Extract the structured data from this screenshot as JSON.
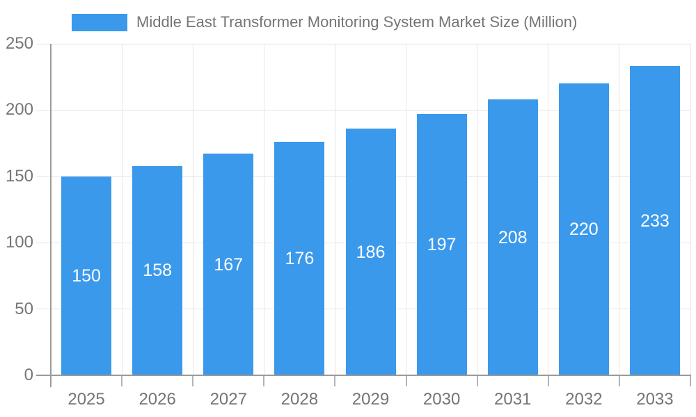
{
  "legend": {
    "label": "Middle East Transformer Monitoring System Market Size (Million)"
  },
  "chart_data": {
    "type": "bar",
    "title": "Middle East Transformer Monitoring System Market Size (Million)",
    "categories": [
      "2025",
      "2026",
      "2027",
      "2028",
      "2029",
      "2030",
      "2031",
      "2032",
      "2033"
    ],
    "values": [
      150,
      158,
      167,
      176,
      186,
      197,
      208,
      220,
      233
    ],
    "yticks": [
      0,
      50,
      100,
      150,
      200,
      250
    ],
    "ylim": [
      0,
      250
    ],
    "xlabel": "",
    "ylabel": "",
    "grid": true,
    "legend_position": "top-left",
    "value_labels": "inside-center-white",
    "colors": {
      "bar": "#3B99EC",
      "grid": "#E6E6E6",
      "axis": "#9A9A9A",
      "tick": "#B3B3B3",
      "text": "#757575",
      "value_label": "#FFFFFF",
      "background": "#FFFFFF"
    }
  }
}
